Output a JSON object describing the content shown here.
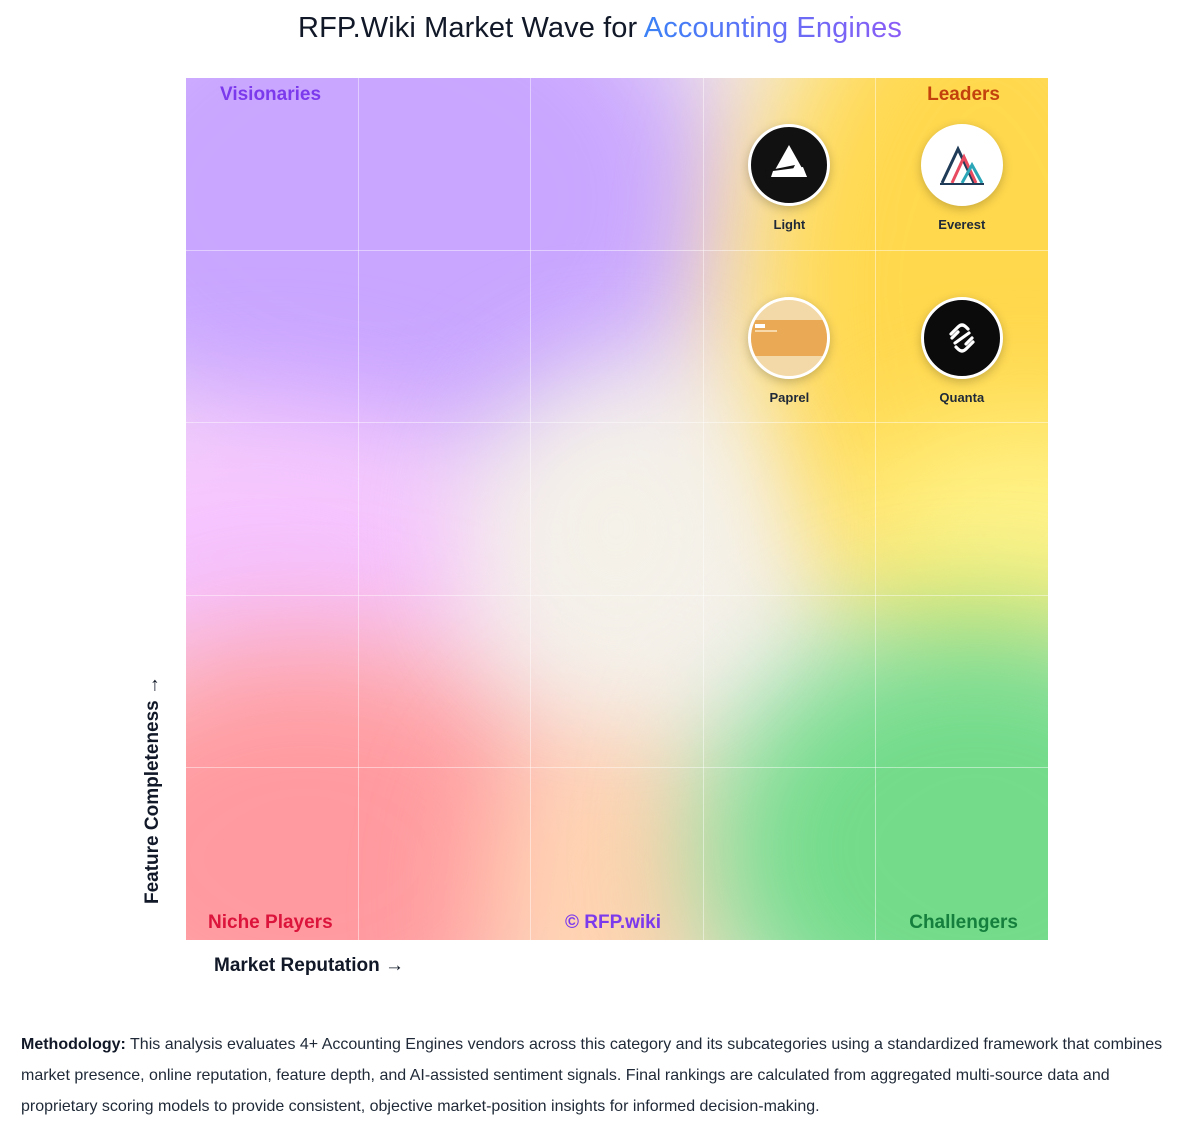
{
  "header": {
    "title_prefix": "RFP.Wiki Market Wave for",
    "title_highlight": "Accounting Engines"
  },
  "chart_data": {
    "type": "scatter",
    "title": "RFP.Wiki Market Wave for Accounting Engines",
    "xlabel": "Market Reputation →",
    "ylabel": "Feature Completeness →",
    "xlim": [
      0,
      5
    ],
    "ylim": [
      0,
      5
    ],
    "grid": true,
    "quadrants": {
      "top_left": "Visionaries",
      "top_right": "Leaders",
      "bottom_left": "Niche Players",
      "bottom_right": "Challengers"
    },
    "watermark": "© RFP.wiki",
    "points": [
      {
        "name": "Light",
        "x": 3.5,
        "y": 4.5,
        "logo": "light-prism-logo"
      },
      {
        "name": "Everest",
        "x": 4.5,
        "y": 4.5,
        "logo": "everest-mountain-logo"
      },
      {
        "name": "Paprel",
        "x": 3.5,
        "y": 3.5,
        "logo": "paprel-card-logo"
      },
      {
        "name": "Quanta",
        "x": 4.5,
        "y": 3.5,
        "logo": "quanta-link-logo"
      }
    ]
  },
  "colors": {
    "visionaries": "#7c3aed",
    "leaders": "#c2410c",
    "niche": "#dc143c",
    "challengers": "#15803d",
    "watermark": "#7c3aed"
  },
  "methodology": {
    "label": "Methodology:",
    "text": "This analysis evaluates 4+ Accounting Engines vendors across this category and its subcategories using a standardized framework that combines market presence, online reputation, feature depth, and AI-assisted sentiment signals. Final rankings are calculated from aggregated multi-source data and proprietary scoring models to provide consistent, objective market-position insights for informed decision-making."
  }
}
